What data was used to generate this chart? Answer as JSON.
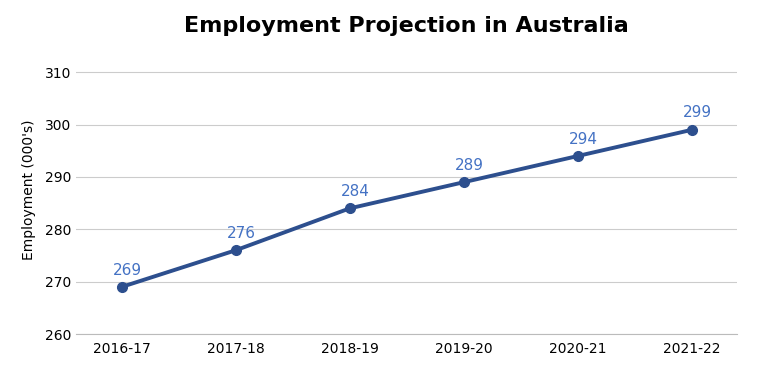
{
  "title": "Employment Projection in Australia",
  "xlabel": "",
  "ylabel": "Employment (000's)",
  "categories": [
    "2016-17",
    "2017-18",
    "2018-19",
    "2019-20",
    "2020-21",
    "2021-22"
  ],
  "values": [
    269,
    276,
    284,
    289,
    294,
    299
  ],
  "ylim": [
    260,
    315
  ],
  "yticks": [
    260,
    270,
    280,
    290,
    300,
    310
  ],
  "line_color": "#2d4f8e",
  "marker_color": "#2d4f8e",
  "annotation_color": "#4472c4",
  "title_fontsize": 16,
  "label_fontsize": 10,
  "annotation_fontsize": 11,
  "tick_fontsize": 10,
  "background_color": "#ffffff",
  "grid_color": "#cccccc",
  "annotation_offsets_x": [
    -0.08,
    -0.08,
    -0.08,
    -0.08,
    -0.08,
    -0.08
  ],
  "annotation_offsets_y": [
    1.8,
    1.8,
    1.8,
    1.8,
    1.8,
    1.8
  ]
}
